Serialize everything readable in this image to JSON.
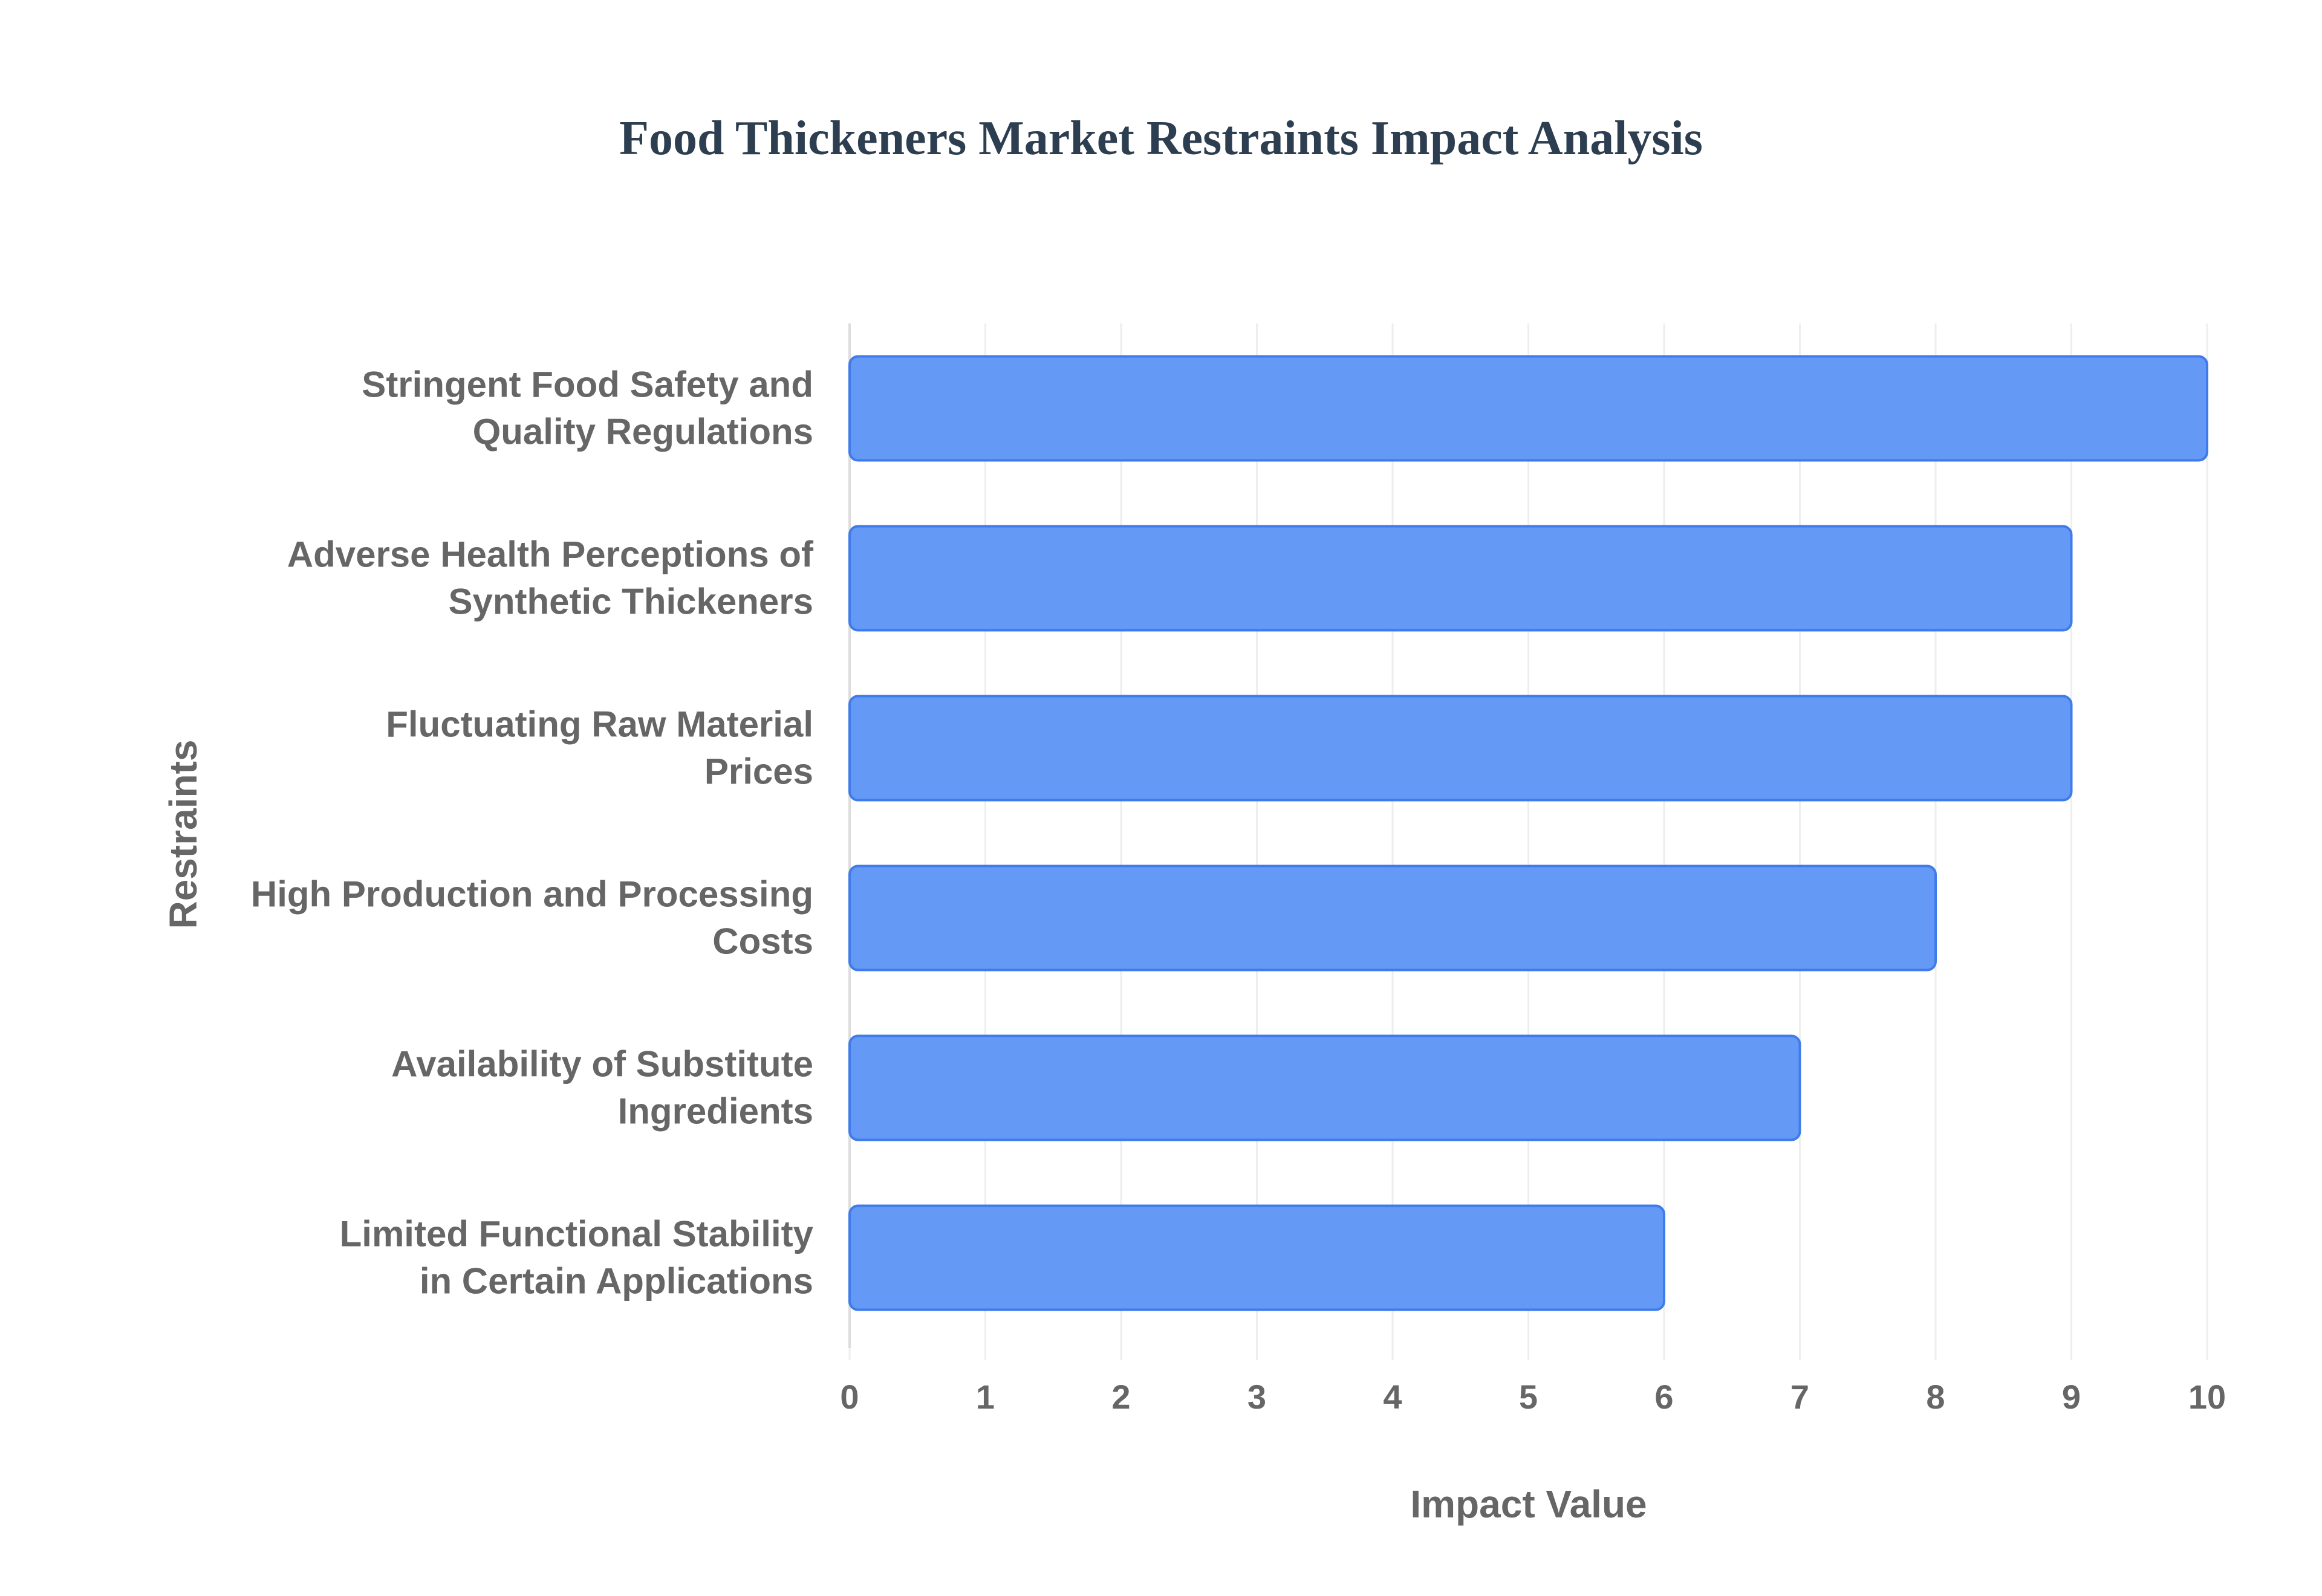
{
  "chart_data": {
    "type": "bar",
    "orientation": "horizontal",
    "title": "Food Thickeners Market Restraints Impact Analysis",
    "xlabel": "Impact Value",
    "ylabel": "Restraints",
    "categories": [
      [
        "Stringent Food Safety and",
        "Quality Regulations"
      ],
      [
        "Adverse Health Perceptions of",
        "Synthetic Thickeners"
      ],
      [
        "Fluctuating Raw Material",
        "Prices"
      ],
      [
        "High Production and Processing",
        "Costs"
      ],
      [
        "Availability of Substitute",
        "Ingredients"
      ],
      [
        "Limited Functional Stability",
        "in Certain Applications"
      ]
    ],
    "values": [
      10,
      9,
      9,
      8,
      7,
      6
    ],
    "xlim": [
      0,
      10
    ],
    "xticks": [
      "0",
      "1",
      "2",
      "3",
      "4",
      "5",
      "6",
      "7",
      "8",
      "9",
      "10"
    ],
    "grid": true,
    "legend": "none",
    "colors": {
      "bar_fill": "#6499f5",
      "bar_stroke": "#3f7bea",
      "grid": "#eeeeee",
      "axis": "#dddddd",
      "title": "#2c3e50",
      "label": "#666666"
    }
  }
}
